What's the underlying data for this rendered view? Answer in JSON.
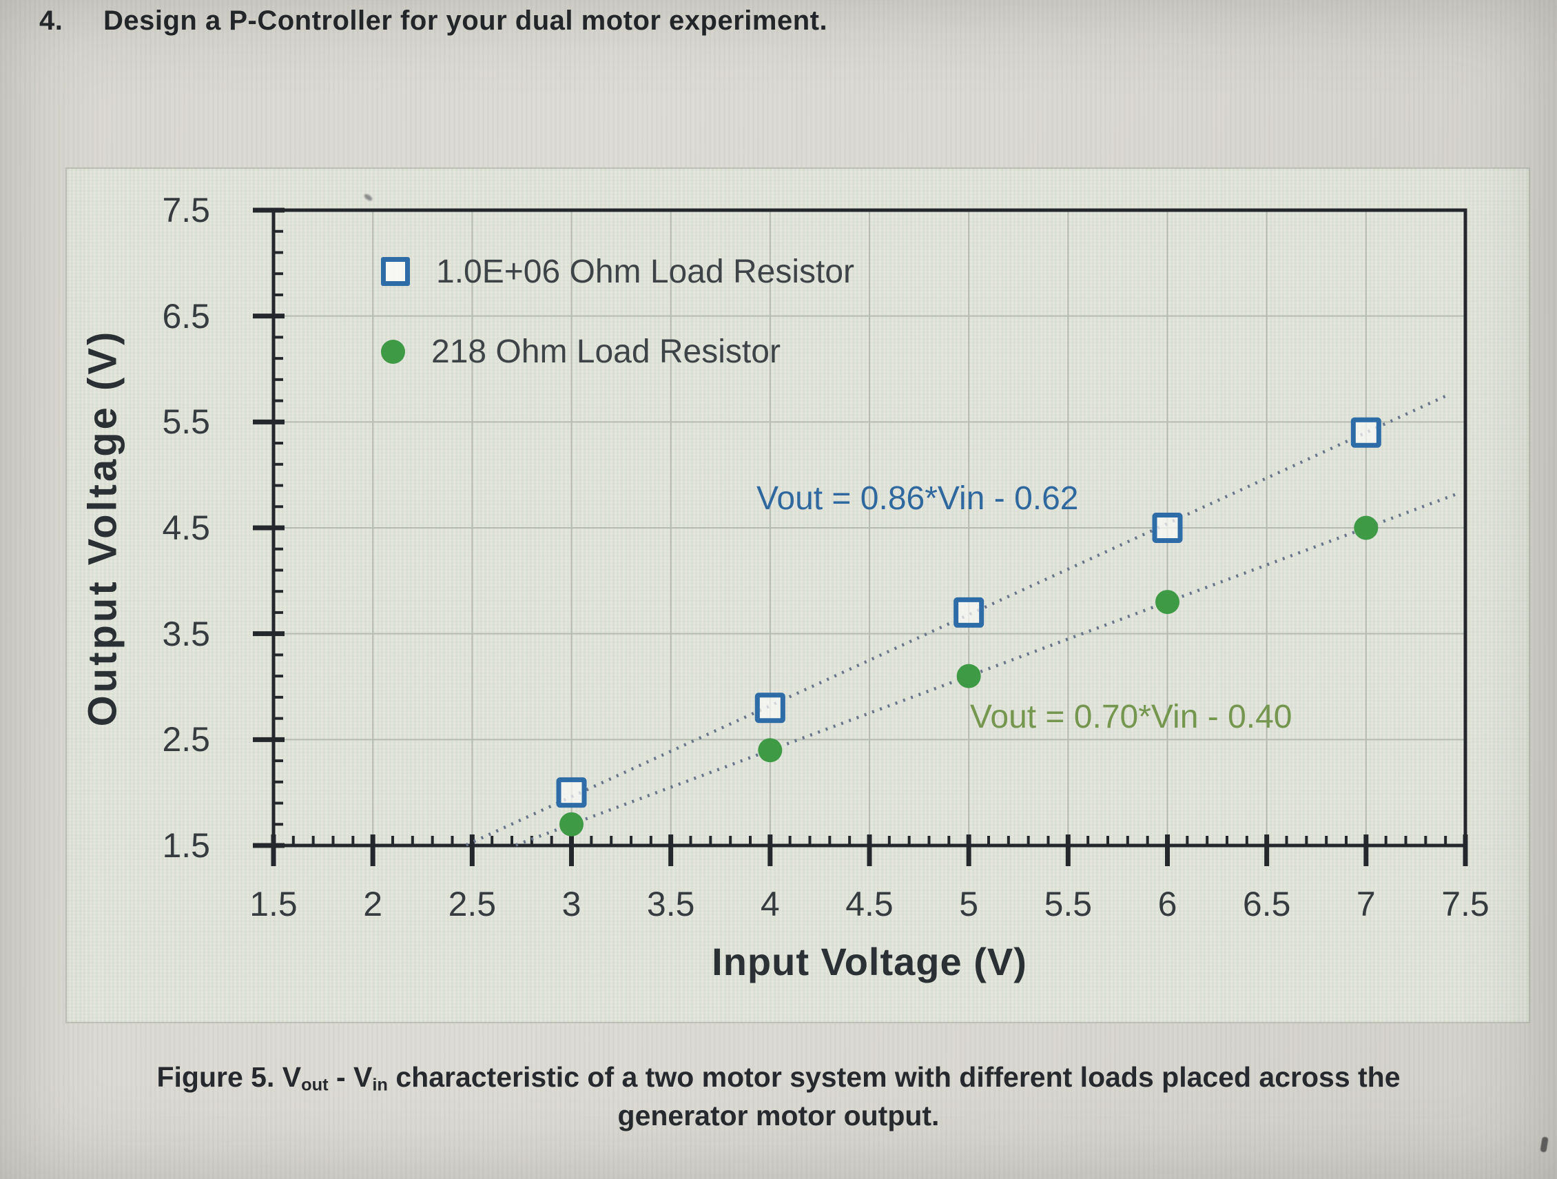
{
  "page": {
    "heading_number": "4.",
    "heading_text": "Design a P-Controller for your dual motor experiment."
  },
  "chart_data": {
    "type": "scatter",
    "title": "",
    "xlabel": "Input Voltage (V)",
    "ylabel": "Output Voltage (V)",
    "xlim": [
      1.5,
      7.5
    ],
    "ylim": [
      1.5,
      7.5
    ],
    "x_tick_labels": [
      "1.5",
      "2",
      "2.5",
      "3",
      "3.5",
      "4",
      "4.5",
      "5",
      "5.5",
      "6",
      "6.5",
      "7",
      "7.5"
    ],
    "y_tick_labels": [
      "1.5",
      "2.5",
      "3.5",
      "4.5",
      "5.5",
      "6.5",
      "7.5"
    ],
    "x_major_step": 0.5,
    "y_major_step": 1.0,
    "x_minor_step": 0.1,
    "y_minor_step": 0.2,
    "grid": {
      "vertical_at_every": 0.5,
      "horizontal_at_every": 1.0,
      "color": "#b6bbb1"
    },
    "legend_position": "top-left-inside",
    "axis_color": "#24282c",
    "trendline_dot_color": "#68758a",
    "series": [
      {
        "name": "1.0E+06 Ohm Load Resistor",
        "marker": "open-square",
        "color": "#2e6ca8",
        "points": [
          [
            3,
            2.0
          ],
          [
            4,
            2.8
          ],
          [
            5,
            3.7
          ],
          [
            6,
            4.5
          ],
          [
            7,
            5.4
          ]
        ],
        "trendline": {
          "label": "Vout = 0.86*Vin - 0.62",
          "label_color": "#2f689e",
          "slope": 0.86,
          "intercept": -0.62,
          "x_start": 2.47,
          "x_end": 7.42,
          "style": "dotted"
        }
      },
      {
        "name": "218 Ohm Load Resistor",
        "marker": "filled-circle",
        "color": "#3f9a46",
        "points": [
          [
            3,
            1.7
          ],
          [
            4,
            2.4
          ],
          [
            5,
            3.1
          ],
          [
            6,
            3.8
          ],
          [
            7,
            4.5
          ]
        ],
        "trendline": {
          "label": "Vout = 0.70*Vin - 0.40",
          "label_color": "#74964e",
          "slope": 0.7,
          "intercept": -0.4,
          "x_start": 2.72,
          "x_end": 7.45,
          "style": "dotted"
        }
      }
    ]
  },
  "caption": {
    "line1_prefix": "Figure 5. V",
    "sub1": "out",
    "line1_mid": " - V",
    "sub2": "in",
    "line1_rest": " characteristic of a two motor system with different loads placed across the",
    "line2": "generator motor output."
  }
}
